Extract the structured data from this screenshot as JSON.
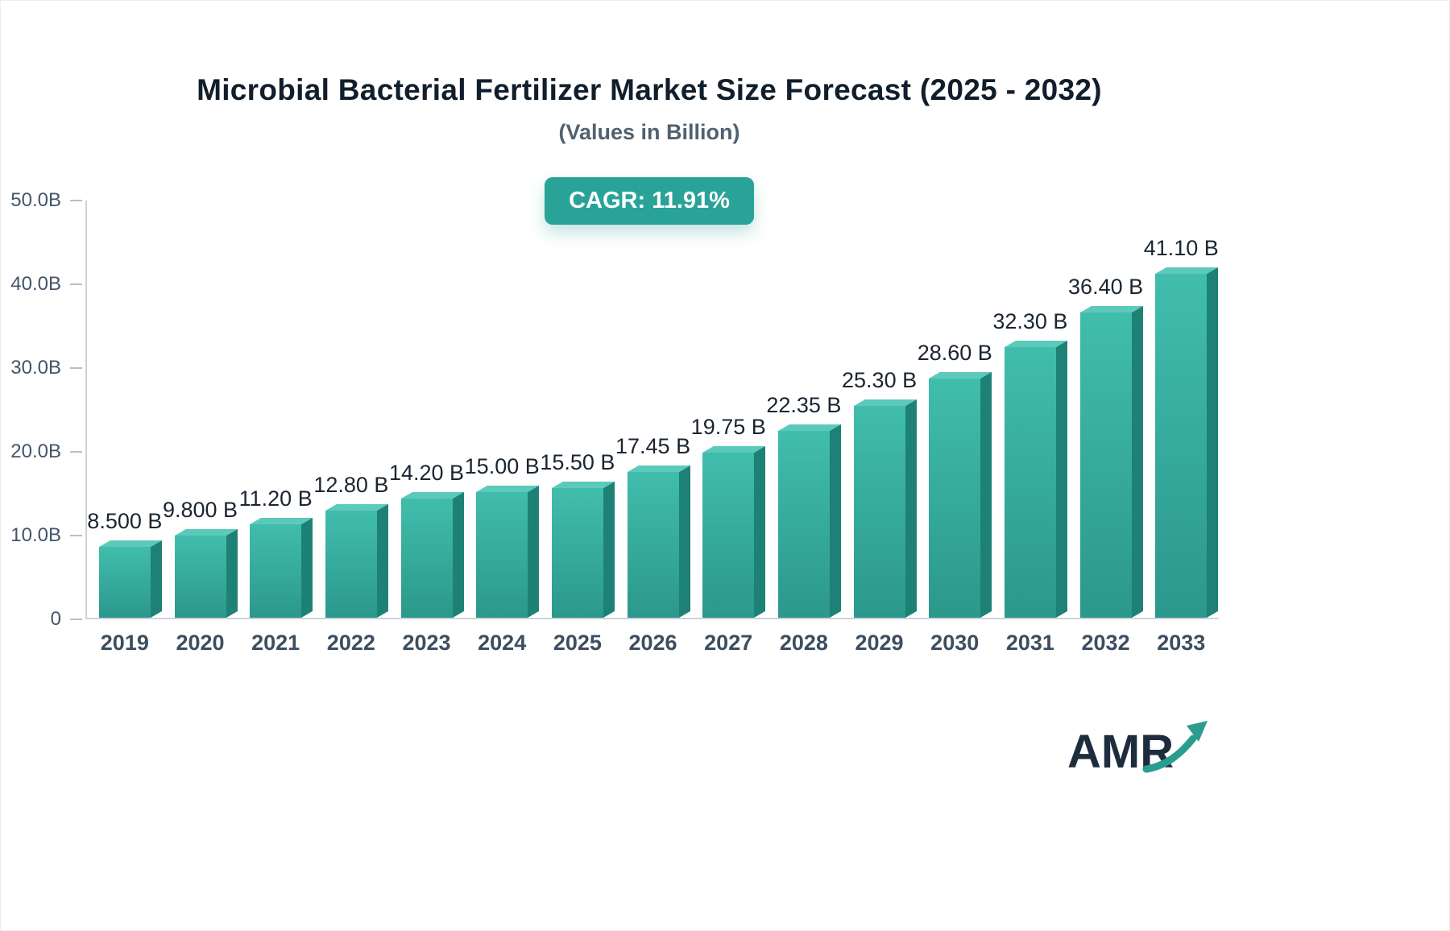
{
  "page": {
    "title": "Microbial Bacterial Fertilizer Market Size Forecast (2025 - 2032)",
    "subtitle": "(Values in Billion)",
    "badge": "CAGR: 11.91%",
    "logo_text": "AMR"
  },
  "colors": {
    "accent_teal": "#2a9d8f",
    "badge_bg": "#29a398",
    "title_color": "#111e2c",
    "axis_color": "#ccd3d9",
    "logo_text_color": "#1d2d3e"
  },
  "chart_data": {
    "type": "bar",
    "title": "Microbial Bacterial Fertilizer Market Size Forecast (2025 - 2032)",
    "subtitle": "(Values in Billion)",
    "annotation": "CAGR: 11.91%",
    "categories": [
      "2019",
      "2020",
      "2021",
      "2022",
      "2023",
      "2024",
      "2025",
      "2026",
      "2027",
      "2028",
      "2029",
      "2030",
      "2031",
      "2032",
      "2033"
    ],
    "values": [
      8.5,
      9.8,
      11.2,
      12.8,
      14.2,
      15.0,
      15.5,
      17.45,
      19.75,
      22.35,
      25.3,
      28.6,
      32.3,
      36.4,
      41.1
    ],
    "value_labels": [
      "8.500 B",
      "9.800 B",
      "11.20 B",
      "12.80 B",
      "14.20 B",
      "15.00 B",
      "15.50 B",
      "17.45 B",
      "19.75 B",
      "22.35 B",
      "25.30 B",
      "28.60 B",
      "32.30 B",
      "36.40 B",
      "41.10 B"
    ],
    "xlabel": "",
    "ylabel": "",
    "ylim": [
      0,
      50
    ],
    "yticks": [
      {
        "label": "0",
        "value": 0
      },
      {
        "label": "10.0B",
        "value": 10
      },
      {
        "label": "20.0B",
        "value": 20
      },
      {
        "label": "30.0B",
        "value": 30
      },
      {
        "label": "40.0B",
        "value": 40
      },
      {
        "label": "50.0B",
        "value": 50
      }
    ],
    "grid": false,
    "legend": false,
    "bar_colors": {
      "front_top": "#41bdac",
      "front_bottom": "#2b988b",
      "side": "#1e8175",
      "top": "#5ccaba"
    }
  }
}
